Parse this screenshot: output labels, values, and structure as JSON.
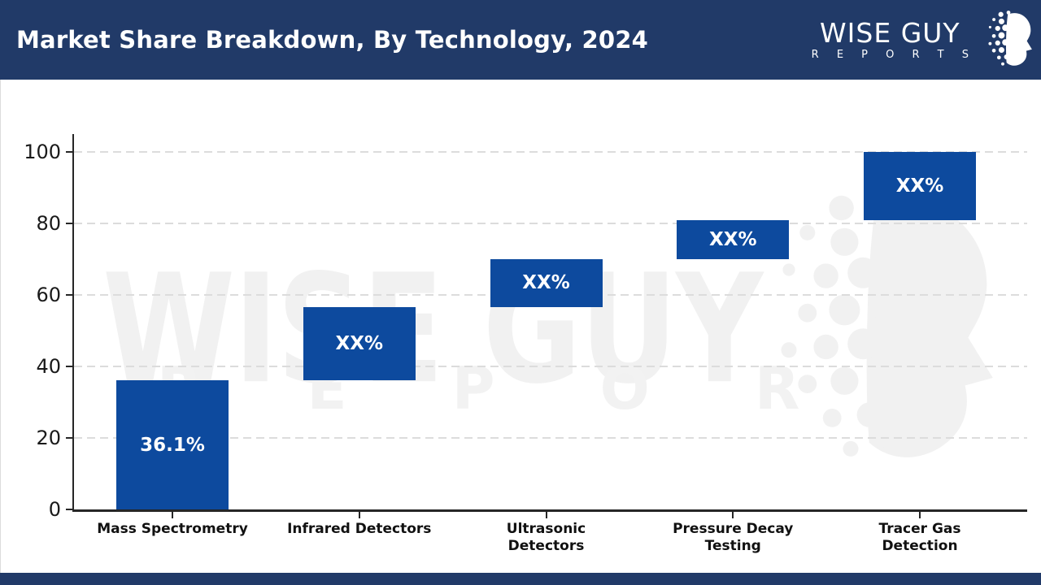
{
  "header": {
    "title": "Market Share Breakdown, By Technology, 2024",
    "logo_wordmark": "WISE GUY",
    "logo_reports": "R E P O R T S"
  },
  "watermark": {
    "wordmark": "WISE GUY",
    "reports": "R E P O R T S"
  },
  "chart_data": {
    "type": "bar",
    "variant": "waterfall",
    "title": "Market Share Breakdown, By Technology, 2024",
    "xlabel": "",
    "ylabel": "",
    "ylim": [
      0,
      100
    ],
    "yticks": [
      0,
      20,
      40,
      60,
      80,
      100
    ],
    "grid": "horizontal-dashed",
    "legend": "none",
    "categories": [
      "Mass Spectrometry",
      "Infrared Detectors",
      "Ultrasonic Detectors",
      "Pressure Decay Testing",
      "Tracer Gas Detection"
    ],
    "categories_lines": [
      [
        "Mass Spectrometry"
      ],
      [
        "Infrared Detectors"
      ],
      [
        "Ultrasonic",
        "Detectors"
      ],
      [
        "Pressure Decay",
        "Testing"
      ],
      [
        "Tracer Gas",
        "Detection"
      ]
    ],
    "bars": [
      {
        "category": "Mass Spectrometry",
        "start": 0,
        "end": 36.1,
        "label": "36.1%"
      },
      {
        "category": "Infrared Detectors",
        "start": 36.1,
        "end": 56.5,
        "label": "XX%"
      },
      {
        "category": "Ultrasonic Detectors",
        "start": 56.6,
        "end": 70.1,
        "label": "XX%"
      },
      {
        "category": "Pressure Decay Testing",
        "start": 70.0,
        "end": 80.8,
        "label": "XX%"
      },
      {
        "category": "Tracer Gas Detection",
        "start": 81.0,
        "end": 100.0,
        "label": "XX%"
      }
    ],
    "colors": {
      "bar": "#0d4a9e",
      "bar_label": "#ffffff",
      "grid": "#dcdcdc",
      "axis": "#262626",
      "header_bg": "#213a68",
      "watermark": "#f1f1f1"
    }
  }
}
